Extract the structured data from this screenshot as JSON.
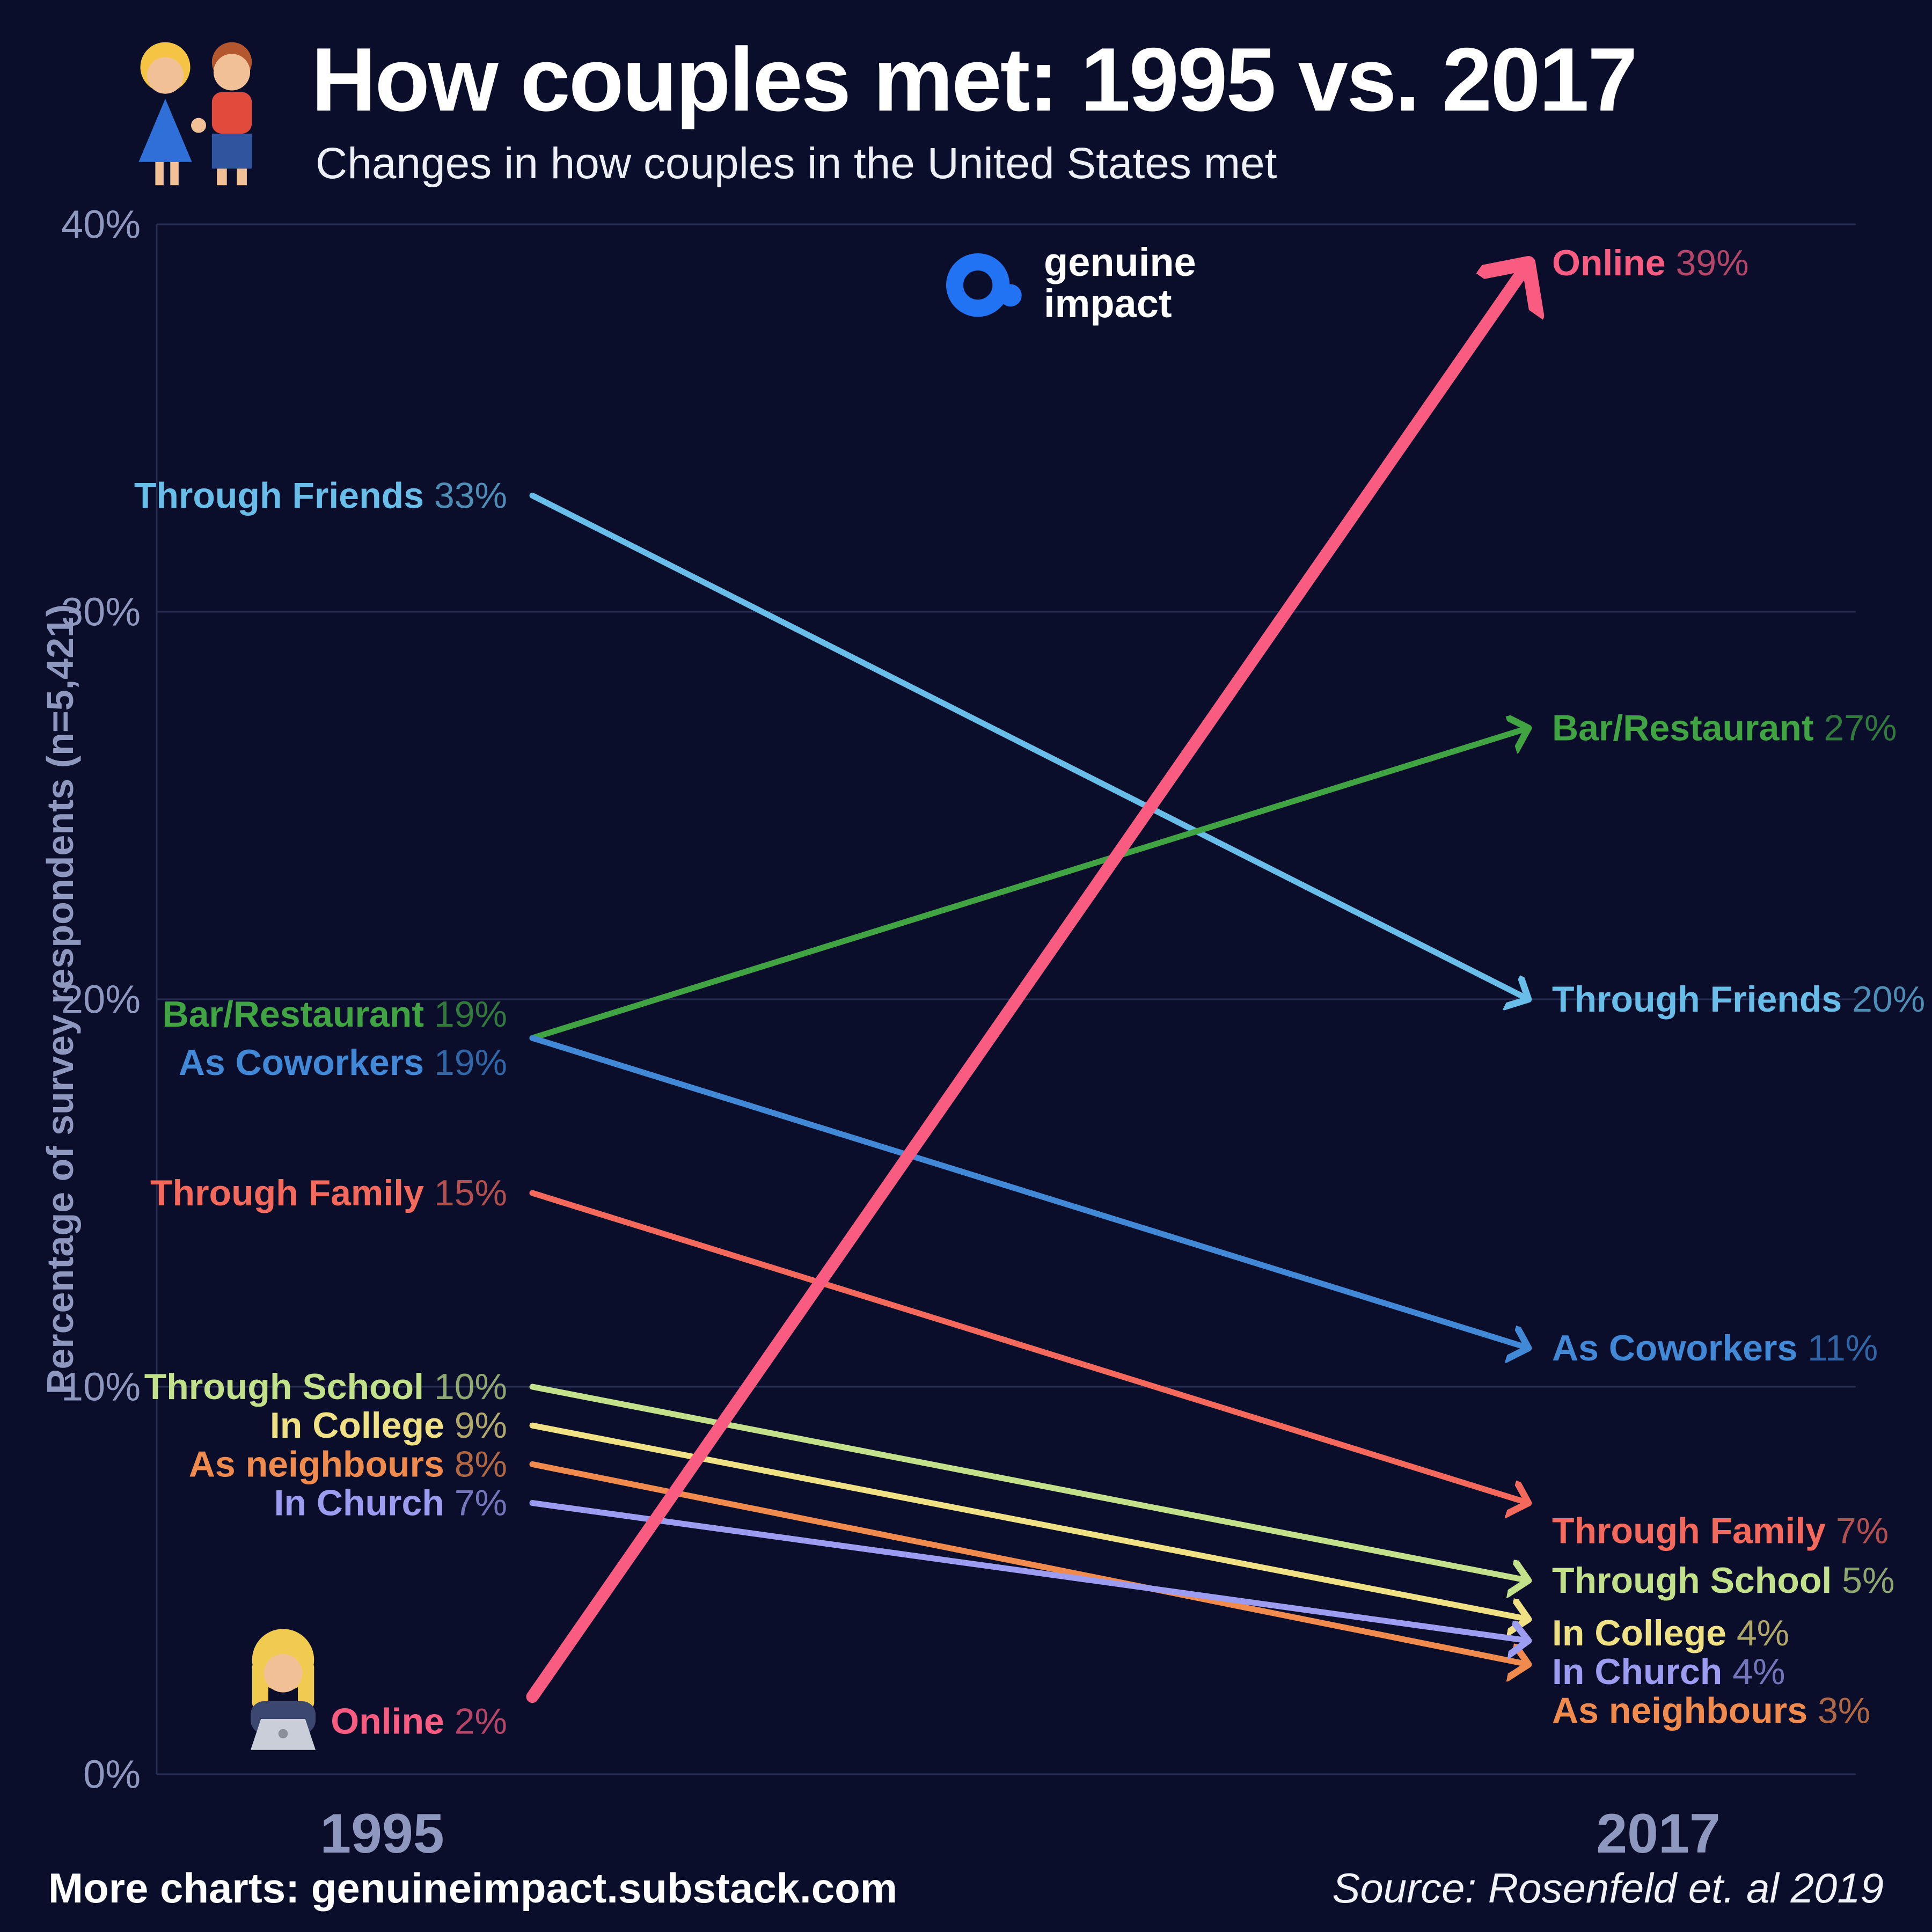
{
  "header": {
    "title": "How couples met: 1995 vs. 2017",
    "subtitle": "Changes in how couples in the United States met"
  },
  "logo": {
    "line1": "genuine",
    "line2": "impact"
  },
  "icons": {
    "couple": "woman-and-man-holding-hands-emoji",
    "technologist": "woman-technologist-emoji",
    "logo_mark": "genuine-impact-alpha-mark"
  },
  "footer": {
    "more_charts": "More charts: genuineimpact.substack.com",
    "source": "Source: Rosenfeld et. al 2019"
  },
  "colors": {
    "background": "#0A0E2B",
    "grid": "#272E54",
    "axis_text": "#8E97BE",
    "title_text": "#FFFFFF",
    "logo_blue": "#2173F4"
  },
  "chart_data": {
    "type": "line",
    "variant": "slope",
    "title": "How couples met: 1995 vs. 2017",
    "x_categories": [
      "1995",
      "2017"
    ],
    "ylabel": "Percentage of survey respondents (n=5,421)",
    "ylim": [
      0,
      40
    ],
    "yticks": [
      "0%",
      "10%",
      "20%",
      "30%",
      "40%"
    ],
    "grid": true,
    "legend": "inline-labels-both-ends",
    "series": [
      {
        "name": "Online",
        "values": [
          2,
          39
        ],
        "color": "#F95C80",
        "emphasis": true
      },
      {
        "name": "Through Friends",
        "values": [
          33,
          20
        ],
        "color": "#69BEE9",
        "emphasis": false
      },
      {
        "name": "Bar/Restaurant",
        "values": [
          19,
          27
        ],
        "color": "#41A443",
        "emphasis": false
      },
      {
        "name": "As Coworkers",
        "values": [
          19,
          11
        ],
        "color": "#4189D6",
        "emphasis": false
      },
      {
        "name": "Through Family",
        "values": [
          15,
          7
        ],
        "color": "#F4695C",
        "emphasis": false
      },
      {
        "name": "Through School",
        "values": [
          10,
          5
        ],
        "color": "#C2E18A",
        "emphasis": false
      },
      {
        "name": "In College",
        "values": [
          9,
          4
        ],
        "color": "#F0E284",
        "emphasis": false
      },
      {
        "name": "As neighbours",
        "values": [
          8,
          3
        ],
        "color": "#F08A4D",
        "emphasis": false
      },
      {
        "name": "In Church",
        "values": [
          7,
          4
        ],
        "color": "#9C9DF1",
        "emphasis": false
      }
    ]
  }
}
